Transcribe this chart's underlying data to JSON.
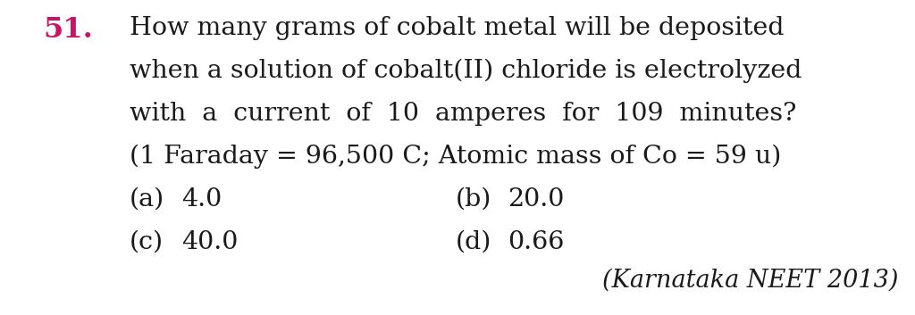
{
  "background_color": "#ffffff",
  "question_number": "51.",
  "question_number_color": "#cc1166",
  "text_color": "#1a1a1a",
  "line1": "How many grams of cobalt metal will be deposited",
  "line2": "when a solution of cobalt(II) chloride is electrolyzed",
  "line3": "with  a  current  of  10  amperes  for  109  minutes?",
  "line4": "(1 Faraday = 96,500 C; Atomic mass of Co = 59 u)",
  "opt_a_label": "(a)",
  "opt_a_val": "4.0",
  "opt_b_label": "(b)",
  "opt_b_val": "20.0",
  "opt_c_label": "(c)",
  "opt_c_val": "40.0",
  "opt_d_label": "(d)",
  "opt_d_val": "0.66",
  "source": "(Karnataka NEET 2013)",
  "font_size_main": 20.5,
  "font_size_source": 19.5,
  "font_size_qnum": 23
}
